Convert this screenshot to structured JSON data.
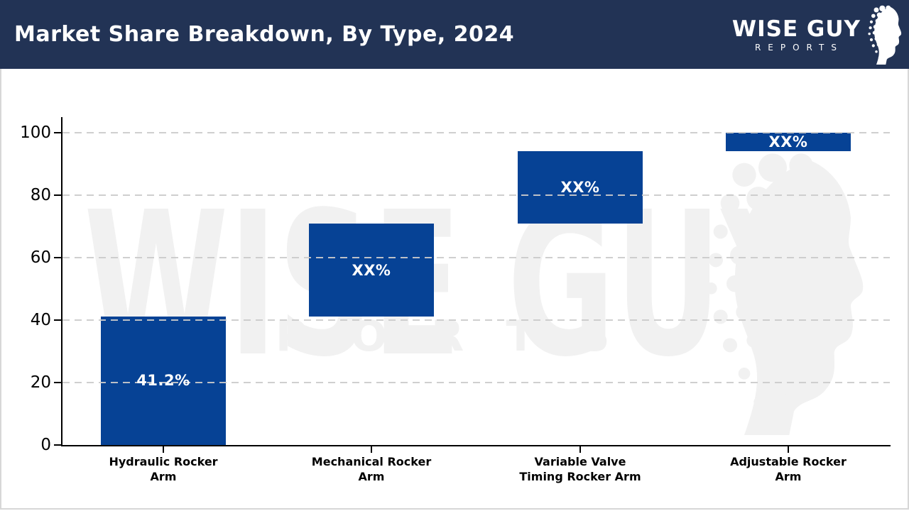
{
  "header": {
    "title": "Market Share Breakdown, By Type, 2024",
    "logo": {
      "name": "WISE GUY",
      "tagline": "REPORTS"
    }
  },
  "watermark": {
    "big_text": "WISE GUY",
    "spaced_text": "PORTS"
  },
  "chart_data": {
    "type": "bar",
    "subtype": "floating-waterfall",
    "title": "Market Share Breakdown, By Type, 2024",
    "categories": [
      [
        "Hydraulic Rocker",
        "Arm"
      ],
      [
        "Mechanical Rocker",
        "Arm"
      ],
      [
        "Variable Valve",
        "Timing Rocker Arm"
      ],
      [
        "Adjustable Rocker",
        "Arm"
      ]
    ],
    "bars": [
      {
        "start": 0,
        "end": 41.2,
        "label": "41.2%"
      },
      {
        "start": 41.2,
        "end": 70.8,
        "label": "XX%"
      },
      {
        "start": 70.8,
        "end": 94,
        "label": "XX%"
      },
      {
        "start": 94,
        "end": 100,
        "label": "XX%"
      }
    ],
    "ylim": [
      0,
      100
    ],
    "yticks": [
      0,
      20,
      40,
      60,
      80,
      100
    ],
    "grid": "horizontal-dashed",
    "legend": "none",
    "bar_color": "#064295",
    "bar_label_color": "#ffffff",
    "axis_color": "#000000",
    "gridline_color": "#cbcbcb"
  },
  "colors": {
    "header_bg": "#223355",
    "bar_blue": "#064295",
    "watermark": "#f1f1f1",
    "frame_border": "#d7d7d7"
  }
}
